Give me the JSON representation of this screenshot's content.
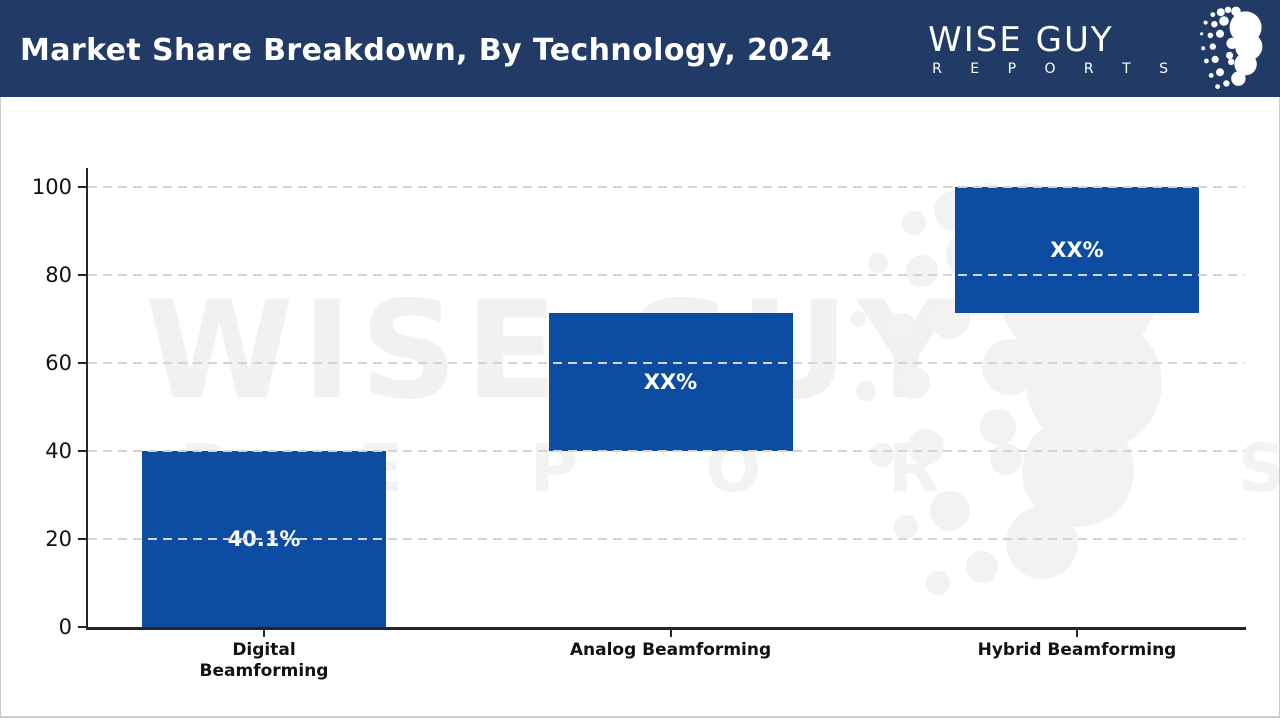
{
  "header": {
    "title": "Market Share Breakdown, By Technology, 2024",
    "bg_color": "#213a66",
    "logo": {
      "line1": "WISE GUY",
      "line2": "R E P O R T S"
    }
  },
  "watermark": {
    "line1": "WISE GUY",
    "line2": "R E P O R T S"
  },
  "chart_data": {
    "type": "bar",
    "subtype": "waterfall-breakdown",
    "title": "Market Share Breakdown, By Technology, 2024",
    "categories": [
      "Digital\nBeamforming",
      "Analog Beamforming",
      "Hybrid Beamforming"
    ],
    "segments": [
      {
        "category": "Digital Beamforming",
        "start": 0,
        "end": 40.1,
        "value": 40.1,
        "label": "40.1%"
      },
      {
        "category": "Analog Beamforming",
        "start": 40.1,
        "end": 71.4,
        "value": 31.3,
        "label": "XX%"
      },
      {
        "category": "Hybrid Beamforming",
        "start": 71.4,
        "end": 100,
        "value": 28.6,
        "label": "XX%"
      }
    ],
    "y_ticks": [
      0,
      20,
      40,
      60,
      80,
      100
    ],
    "ylim": [
      0,
      100
    ],
    "xlabel": "",
    "ylabel": "",
    "grid": "dashed-horizontal",
    "legend": "none",
    "bar_color": "#0c4da2",
    "label_color": "#ffffff"
  }
}
